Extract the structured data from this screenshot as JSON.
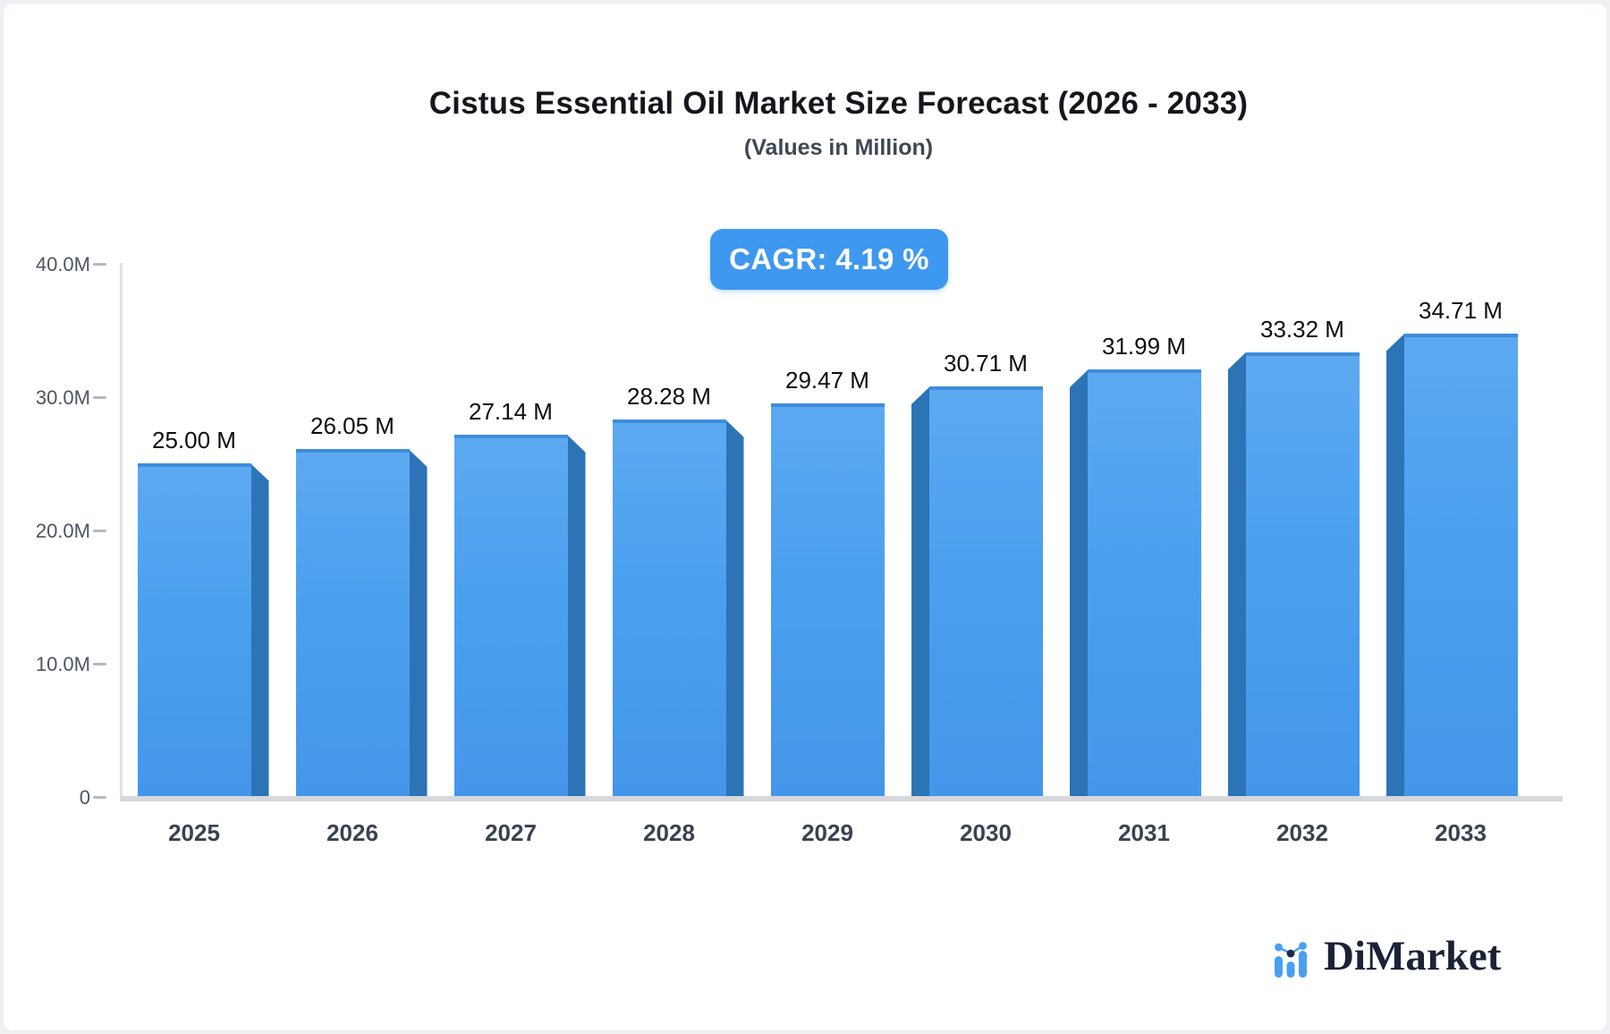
{
  "header": {
    "title": "Cistus Essential Oil Market Size Forecast (2026 - 2033)",
    "subtitle": "(Values in Million)"
  },
  "badge": {
    "label": "CAGR: 4.19 %",
    "color": "#3f98ef"
  },
  "chart_data": {
    "type": "bar",
    "title": "Cistus Essential Oil Market Size Forecast (2026 - 2033)",
    "subtitle": "(Values in Million)",
    "unit": "Million",
    "categories": [
      "2025",
      "2026",
      "2027",
      "2028",
      "2029",
      "2030",
      "2031",
      "2032",
      "2033"
    ],
    "values": [
      25.0,
      26.05,
      27.14,
      28.28,
      29.47,
      30.71,
      31.99,
      33.32,
      34.71
    ],
    "value_labels": [
      "25.00 M",
      "26.05 M",
      "27.14 M",
      "28.28 M",
      "29.47 M",
      "30.71 M",
      "31.99 M",
      "33.32 M",
      "34.71 M"
    ],
    "cagr": "4.19 %",
    "ylim": [
      0,
      40
    ],
    "y_ticks": [
      {
        "value": 0,
        "label": "0"
      },
      {
        "value": 10,
        "label": "10.0M"
      },
      {
        "value": 20,
        "label": "20.0M"
      },
      {
        "value": 30,
        "label": "30.0M"
      },
      {
        "value": 40,
        "label": "40.0M"
      }
    ],
    "grid": false,
    "legend": false,
    "bar_color_top": "#5ca9f1",
    "bar_color_bottom": "#4496ea",
    "bar_top_stroke": "#3e8cdb",
    "bar_side_color": "#2c74b6"
  },
  "footer": {
    "brand": "DiMarket"
  }
}
